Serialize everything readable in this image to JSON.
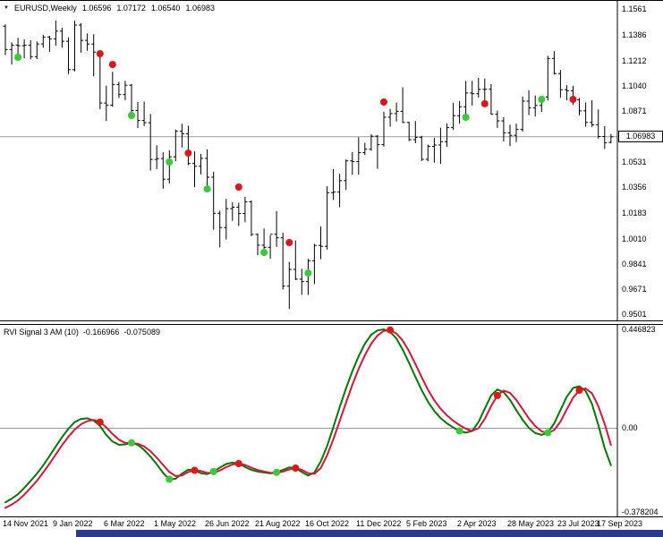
{
  "icons": {
    "dropdown": "▼"
  },
  "header": {
    "symbol": "EURUSD,Weekly",
    "open": "1.06596",
    "high": "1.07172",
    "low": "1.06540",
    "close": "1.06983"
  },
  "colors": {
    "bar": "#000000",
    "buy_dot": "#35cc35",
    "sell_dot": "#e01515",
    "rvi_line": "#007a00",
    "signal_line": "#dc143c",
    "level_line": "#999999",
    "panel_border": "#000000",
    "taskbar": "#2b3990"
  },
  "price_axis": {
    "ticks": [
      "1.1561",
      "1.1386",
      "1.1212",
      "1.1040",
      "1.0871",
      "1.0531",
      "1.0356",
      "1.0183",
      "1.0010",
      "0.9841",
      "0.9671",
      "0.9501"
    ],
    "current_price": "1.06983"
  },
  "time_axis": {
    "bars_per_label": 8,
    "labels": [
      "14 Nov 2021",
      "9 Jan 2022",
      "6 Mar 2022",
      "1 May 2022",
      "26 Jun 2022",
      "21 Aug 2022",
      "16 Oct 2022",
      "11 Dec 2022",
      "5 Feb 2023",
      "2 Apr 2023",
      "28 May 2023",
      "23 Jul 2023",
      "17 Sep 2023"
    ]
  },
  "indicator": {
    "name": "RVI Signal 3 AM (10)",
    "value1": "-0.166966",
    "value2": "-0.075089",
    "axis_ticks": [
      "0.446823",
      "0.00",
      "-0.378204"
    ]
  },
  "chart_data": [
    {
      "type": "ohlc-bar",
      "title": "EURUSD weekly price bars with buy/sell signal dots",
      "ylim": [
        0.9501,
        1.1561
      ],
      "ohlc": [
        [
          1.1445,
          1.1456,
          1.125,
          1.1287
        ],
        [
          1.1287,
          1.1335,
          1.1186,
          1.1317
        ],
        [
          1.1317,
          1.1366,
          1.1235,
          1.1313
        ],
        [
          1.1313,
          1.1355,
          1.1228,
          1.1316
        ],
        [
          1.1316,
          1.1349,
          1.1221,
          1.1239
        ],
        [
          1.1239,
          1.1342,
          1.1222,
          1.1325
        ],
        [
          1.1325,
          1.1387,
          1.13,
          1.1371
        ],
        [
          1.1371,
          1.138,
          1.1272,
          1.1359
        ],
        [
          1.1359,
          1.1483,
          1.1313,
          1.1411
        ],
        [
          1.1411,
          1.1435,
          1.1301,
          1.1343
        ],
        [
          1.1343,
          1.1369,
          1.1121,
          1.1151
        ],
        [
          1.1151,
          1.1483,
          1.114,
          1.1452
        ],
        [
          1.1452,
          1.1465,
          1.1266,
          1.1349
        ],
        [
          1.1349,
          1.1395,
          1.1279,
          1.1324
        ],
        [
          1.1324,
          1.139,
          1.1106,
          1.127
        ],
        [
          1.127,
          1.1273,
          1.0885,
          1.0926
        ],
        [
          1.0926,
          1.1043,
          1.0806,
          1.0911
        ],
        [
          1.0911,
          1.1137,
          1.09,
          1.1051
        ],
        [
          1.1051,
          1.1069,
          1.096,
          1.0983
        ],
        [
          1.0983,
          1.1076,
          1.0944,
          1.1046
        ],
        [
          1.1046,
          1.1054,
          1.0836,
          1.0876
        ],
        [
          1.0876,
          1.0933,
          1.0757,
          1.0808
        ],
        [
          1.0808,
          1.0936,
          1.077,
          1.0794
        ],
        [
          1.0794,
          1.0852,
          1.047,
          1.0545
        ],
        [
          1.0545,
          1.0641,
          1.0481,
          1.0551
        ],
        [
          1.0551,
          1.0593,
          1.0348,
          1.0412
        ],
        [
          1.0412,
          1.0607,
          1.0384,
          1.0563
        ],
        [
          1.0563,
          1.0748,
          1.0532,
          1.0735
        ],
        [
          1.0735,
          1.0786,
          1.0626,
          1.0719
        ],
        [
          1.0719,
          1.0773,
          1.0506,
          1.0518
        ],
        [
          1.0518,
          1.06,
          1.0357,
          1.0499
        ],
        [
          1.0499,
          1.0582,
          1.0443,
          1.0553
        ],
        [
          1.0553,
          1.0614,
          1.0365,
          1.0425
        ],
        [
          1.0425,
          1.0463,
          1.0071,
          1.0182
        ],
        [
          1.0182,
          1.0199,
          0.9952,
          1.0086
        ],
        [
          1.0086,
          1.0279,
          1.0005,
          1.0213
        ],
        [
          1.0213,
          1.0257,
          1.0131,
          1.0223
        ],
        [
          1.0223,
          1.0254,
          1.0096,
          1.018
        ],
        [
          1.018,
          1.0293,
          1.0122,
          1.0259
        ],
        [
          1.0259,
          1.0269,
          1.0028,
          1.0039
        ],
        [
          1.0039,
          1.0046,
          0.9899,
          0.9966
        ],
        [
          0.9966,
          1.0079,
          0.991,
          0.9952
        ],
        [
          0.9952,
          1.0033,
          0.9875,
          1.004
        ],
        [
          1.004,
          1.0197,
          0.9955,
          1.0016
        ],
        [
          1.0016,
          1.005,
          0.9667,
          0.969
        ],
        [
          0.969,
          0.9853,
          0.9536,
          0.9803
        ],
        [
          0.9803,
          0.9999,
          0.9731,
          0.9737
        ],
        [
          0.9737,
          0.9807,
          0.9632,
          0.9721
        ],
        [
          0.9721,
          0.9875,
          0.963,
          0.9861
        ],
        [
          0.9861,
          0.9976,
          0.9704,
          0.9965
        ],
        [
          0.9965,
          1.0093,
          0.9872,
          0.9959
        ],
        [
          0.9959,
          1.0364,
          0.9937,
          1.0321
        ],
        [
          1.0321,
          1.0481,
          1.0271,
          1.0325
        ],
        [
          1.0325,
          1.0448,
          1.0222,
          1.0402
        ],
        [
          1.0402,
          1.0545,
          1.0339,
          1.0535
        ],
        [
          1.0535,
          1.0594,
          1.0442,
          1.0531
        ],
        [
          1.0531,
          1.0695,
          1.0443,
          1.0591
        ],
        [
          1.0591,
          1.0658,
          1.0575,
          1.0614
        ],
        [
          1.0614,
          1.0715,
          1.0604,
          1.0702
        ],
        [
          1.0702,
          1.071,
          1.0482,
          1.0645
        ],
        [
          1.0645,
          1.0868,
          1.0632,
          1.083
        ],
        [
          1.083,
          1.0887,
          1.0766,
          1.0855
        ],
        [
          1.0855,
          1.0929,
          1.0801,
          1.087
        ],
        [
          1.087,
          1.1032,
          1.0791,
          1.0795
        ],
        [
          1.0795,
          1.08,
          1.0669,
          1.0679
        ],
        [
          1.0679,
          1.0804,
          1.0655,
          1.0694
        ],
        [
          1.0694,
          1.0705,
          1.0535,
          1.0546
        ],
        [
          1.0546,
          1.0645,
          1.0533,
          1.0634
        ],
        [
          1.0634,
          1.0691,
          1.0524,
          1.0643
        ],
        [
          1.0643,
          1.076,
          1.0516,
          1.0665
        ],
        [
          1.0665,
          1.0788,
          1.0629,
          1.076
        ],
        [
          1.076,
          1.0926,
          1.0745,
          1.0841
        ],
        [
          1.0841,
          1.0938,
          1.0788,
          1.0901
        ],
        [
          1.0901,
          1.1075,
          1.0831,
          1.0994
        ],
        [
          1.0994,
          1.1076,
          1.0909,
          1.0989
        ],
        [
          1.0989,
          1.1096,
          1.0963,
          1.1018
        ],
        [
          1.1018,
          1.1091,
          1.0942,
          1.1019
        ],
        [
          1.1019,
          1.1053,
          1.0848,
          1.085
        ],
        [
          1.085,
          1.0875,
          1.0759,
          1.0805
        ],
        [
          1.0805,
          1.0831,
          1.0666,
          1.0725
        ],
        [
          1.0725,
          1.0779,
          1.0635,
          1.0708
        ],
        [
          1.0708,
          1.0787,
          1.0662,
          1.0748
        ],
        [
          1.0748,
          1.097,
          1.0733,
          1.0939
        ],
        [
          1.0939,
          1.1012,
          1.0844,
          1.0893
        ],
        [
          1.0893,
          1.0977,
          1.0835,
          1.091
        ],
        [
          1.091,
          1.0973,
          1.0866,
          1.0967
        ],
        [
          1.0967,
          1.1245,
          1.0943,
          1.1227
        ],
        [
          1.1227,
          1.1276,
          1.1119,
          1.1125
        ],
        [
          1.1125,
          1.1149,
          1.0962,
          1.1016
        ],
        [
          1.1016,
          1.1046,
          1.0944,
          1.1009
        ],
        [
          1.1009,
          1.1042,
          1.0913,
          1.0947
        ],
        [
          1.0947,
          1.096,
          1.0844,
          1.0873
        ],
        [
          1.0873,
          1.093,
          1.0766,
          1.0795
        ],
        [
          1.0795,
          1.0945,
          1.0765,
          1.0779
        ],
        [
          1.0779,
          1.0882,
          1.0686,
          1.07
        ],
        [
          1.07,
          1.077,
          1.0616,
          1.0658
        ],
        [
          1.06596,
          1.07172,
          1.0654,
          1.06983
        ]
      ],
      "markers": [
        {
          "i": 2,
          "p": 1.1235,
          "t": "buy"
        },
        {
          "i": 15,
          "p": 1.1259,
          "t": "sell"
        },
        {
          "i": 17,
          "p": 1.1186,
          "t": "sell"
        },
        {
          "i": 20,
          "p": 1.0842,
          "t": "buy"
        },
        {
          "i": 26,
          "p": 1.0528,
          "t": "buy"
        },
        {
          "i": 29,
          "p": 1.0588,
          "t": "sell"
        },
        {
          "i": 32,
          "p": 1.0346,
          "t": "buy"
        },
        {
          "i": 37,
          "p": 1.0359,
          "t": "sell"
        },
        {
          "i": 41,
          "p": 0.9917,
          "t": "buy"
        },
        {
          "i": 45,
          "p": 0.9984,
          "t": "sell"
        },
        {
          "i": 48,
          "p": 0.9778,
          "t": "buy"
        },
        {
          "i": 60,
          "p": 1.0933,
          "t": "sell"
        },
        {
          "i": 73,
          "p": 1.083,
          "t": "buy"
        },
        {
          "i": 76,
          "p": 1.0921,
          "t": "sell"
        },
        {
          "i": 85,
          "p": 1.0951,
          "t": "buy"
        },
        {
          "i": 90,
          "p": 1.0951,
          "t": "sell"
        }
      ]
    },
    {
      "type": "line",
      "title": "RVI Signal 3 AM (10)",
      "ylim": [
        -0.378204,
        0.446823
      ],
      "series": [
        {
          "name": "RVI",
          "color": "#007a00",
          "values": [
            -0.335,
            -0.318,
            -0.298,
            -0.27,
            -0.238,
            -0.205,
            -0.168,
            -0.125,
            -0.082,
            -0.04,
            -0.002,
            0.028,
            0.042,
            0.045,
            0.035,
            0.01,
            -0.03,
            -0.06,
            -0.075,
            -0.073,
            -0.066,
            -0.075,
            -0.098,
            -0.128,
            -0.163,
            -0.202,
            -0.232,
            -0.228,
            -0.205,
            -0.187,
            -0.19,
            -0.203,
            -0.207,
            -0.196,
            -0.178,
            -0.162,
            -0.155,
            -0.16,
            -0.175,
            -0.188,
            -0.196,
            -0.2,
            -0.204,
            -0.199,
            -0.188,
            -0.177,
            -0.18,
            -0.198,
            -0.214,
            -0.2,
            -0.15,
            -0.08,
            0.005,
            0.095,
            0.18,
            0.258,
            0.325,
            0.382,
            0.422,
            0.442,
            0.447,
            0.436,
            0.405,
            0.355,
            0.295,
            0.232,
            0.172,
            0.12,
            0.078,
            0.046,
            0.022,
            0.003,
            -0.012,
            -0.02,
            -0.012,
            0.028,
            0.088,
            0.148,
            0.175,
            0.163,
            0.128,
            0.082,
            0.038,
            0.002,
            -0.022,
            -0.03,
            -0.02,
            0.022,
            0.082,
            0.142,
            0.182,
            0.19,
            0.168,
            0.11,
            0.015,
            -0.09,
            -0.166966
          ]
        },
        {
          "name": "Signal",
          "color": "#dc143c",
          "values": [
            -0.36,
            -0.345,
            -0.326,
            -0.3,
            -0.27,
            -0.237,
            -0.2,
            -0.16,
            -0.118,
            -0.076,
            -0.038,
            -0.006,
            0.018,
            0.032,
            0.038,
            0.028,
            0.004,
            -0.026,
            -0.052,
            -0.066,
            -0.068,
            -0.07,
            -0.082,
            -0.104,
            -0.133,
            -0.166,
            -0.198,
            -0.216,
            -0.213,
            -0.198,
            -0.189,
            -0.193,
            -0.202,
            -0.202,
            -0.191,
            -0.176,
            -0.164,
            -0.16,
            -0.166,
            -0.178,
            -0.189,
            -0.196,
            -0.201,
            -0.202,
            -0.196,
            -0.186,
            -0.18,
            -0.188,
            -0.203,
            -0.206,
            -0.18,
            -0.122,
            -0.05,
            0.032,
            0.115,
            0.196,
            0.268,
            0.33,
            0.382,
            0.419,
            0.44,
            0.444,
            0.428,
            0.396,
            0.348,
            0.29,
            0.23,
            0.174,
            0.126,
            0.088,
            0.058,
            0.034,
            0.014,
            -0.002,
            -0.012,
            0.0,
            0.042,
            0.1,
            0.148,
            0.17,
            0.16,
            0.128,
            0.086,
            0.044,
            0.01,
            -0.014,
            -0.022,
            -0.008,
            0.03,
            0.085,
            0.138,
            0.172,
            0.18,
            0.158,
            0.1,
            0.02,
            -0.075089
          ]
        }
      ],
      "markers": [
        {
          "i": 15,
          "v": 0.028,
          "t": "sell"
        },
        {
          "i": 20,
          "v": -0.066,
          "t": "buy"
        },
        {
          "i": 26,
          "v": -0.23,
          "t": "buy"
        },
        {
          "i": 30,
          "v": -0.19,
          "t": "sell"
        },
        {
          "i": 33,
          "v": -0.196,
          "t": "buy"
        },
        {
          "i": 37,
          "v": -0.16,
          "t": "sell"
        },
        {
          "i": 43,
          "v": -0.199,
          "t": "buy"
        },
        {
          "i": 46,
          "v": -0.18,
          "t": "sell"
        },
        {
          "i": 61,
          "v": 0.444,
          "t": "sell"
        },
        {
          "i": 72,
          "v": -0.012,
          "t": "buy"
        },
        {
          "i": 78,
          "v": 0.148,
          "t": "sell"
        },
        {
          "i": 86,
          "v": -0.02,
          "t": "buy"
        },
        {
          "i": 91,
          "v": 0.172,
          "t": "sell"
        }
      ]
    }
  ]
}
